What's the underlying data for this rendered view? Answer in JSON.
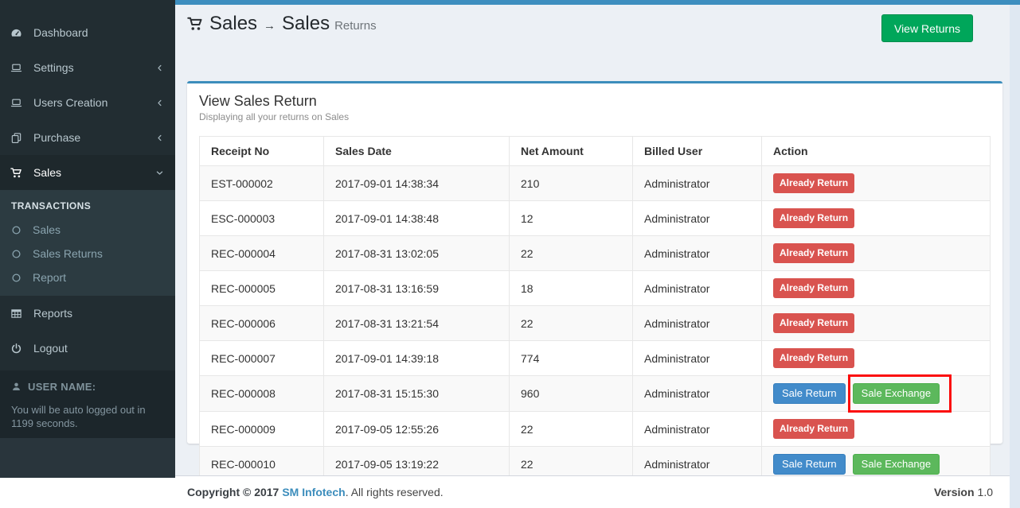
{
  "sidebar": {
    "items": [
      {
        "label": "Dashboard",
        "icon": "dashboard-icon"
      },
      {
        "label": "Settings",
        "icon": "laptop-icon"
      },
      {
        "label": "Users Creation",
        "icon": "laptop-icon"
      },
      {
        "label": "Purchase",
        "icon": "copy-icon"
      },
      {
        "label": "Sales",
        "icon": "cart-icon"
      }
    ],
    "section_header": "TRANSACTIONS",
    "submenu": [
      {
        "label": "Sales"
      },
      {
        "label": "Sales Returns"
      },
      {
        "label": "Report"
      }
    ],
    "bottom_items": [
      {
        "label": "Reports",
        "icon": "table-icon"
      },
      {
        "label": "Logout",
        "icon": "power-icon"
      }
    ],
    "user_label": "USER NAME:",
    "auto_logout_line1": "You will be auto logged out in",
    "auto_logout_line2": "1199 seconds."
  },
  "header": {
    "breadcrumb_primary": "Sales",
    "breadcrumb_arrow": "→",
    "breadcrumb_secondary": "Sales",
    "breadcrumb_sub": "Returns",
    "view_returns_label": "View Returns"
  },
  "panel": {
    "title": "View Sales Return",
    "subtitle": "Displaying all your returns on Sales"
  },
  "table": {
    "columns": [
      "Receipt No",
      "Sales Date",
      "Net Amount",
      "Billed User",
      "Action"
    ],
    "action_labels": {
      "already": "Already Return",
      "sale_return": "Sale Return",
      "sale_exchange": "Sale Exchange"
    },
    "rows": [
      {
        "receipt_no": "EST-000002",
        "sales_date": "2017-09-01 14:38:34",
        "net_amount": "210",
        "billed_user": "Administrator",
        "actions": [
          "already"
        ]
      },
      {
        "receipt_no": "ESC-000003",
        "sales_date": "2017-09-01 14:38:48",
        "net_amount": "12",
        "billed_user": "Administrator",
        "actions": [
          "already"
        ]
      },
      {
        "receipt_no": "REC-000004",
        "sales_date": "2017-08-31 13:02:05",
        "net_amount": "22",
        "billed_user": "Administrator",
        "actions": [
          "already"
        ]
      },
      {
        "receipt_no": "REC-000005",
        "sales_date": "2017-08-31 13:16:59",
        "net_amount": "18",
        "billed_user": "Administrator",
        "actions": [
          "already"
        ]
      },
      {
        "receipt_no": "REC-000006",
        "sales_date": "2017-08-31 13:21:54",
        "net_amount": "22",
        "billed_user": "Administrator",
        "actions": [
          "already"
        ]
      },
      {
        "receipt_no": "REC-000007",
        "sales_date": "2017-09-01 14:39:18",
        "net_amount": "774",
        "billed_user": "Administrator",
        "actions": [
          "already"
        ]
      },
      {
        "receipt_no": "REC-000008",
        "sales_date": "2017-08-31 15:15:30",
        "net_amount": "960",
        "billed_user": "Administrator",
        "actions": [
          "sale_return",
          "sale_exchange"
        ],
        "highlighted_action": "sale_exchange"
      },
      {
        "receipt_no": "REC-000009",
        "sales_date": "2017-09-05 12:55:26",
        "net_amount": "22",
        "billed_user": "Administrator",
        "actions": [
          "already"
        ]
      },
      {
        "receipt_no": "REC-000010",
        "sales_date": "2017-09-05 13:19:22",
        "net_amount": "22",
        "billed_user": "Administrator",
        "actions": [
          "sale_return",
          "sale_exchange"
        ]
      }
    ]
  },
  "footer": {
    "copyright_bold": "Copyright © 2017",
    "company_link": "SM Infotech",
    "copyright_rest": ". All rights reserved.",
    "version_label": "Version",
    "version_value": "1.0"
  },
  "colors": {
    "topbar_blue": "#3c8dbc",
    "sidebar_dark": "#222d32",
    "sidebar_active": "#1e282c",
    "submenu_bg": "#2c3b41",
    "content_bg": "#ecf0f5",
    "panel_accent": "#3c8dbc",
    "badge_red": "#d9534f",
    "button_blue": "#428bca",
    "button_green": "#5cb85c",
    "view_returns_green": "#00a65a",
    "annotation_red": "#fb0c0c"
  }
}
